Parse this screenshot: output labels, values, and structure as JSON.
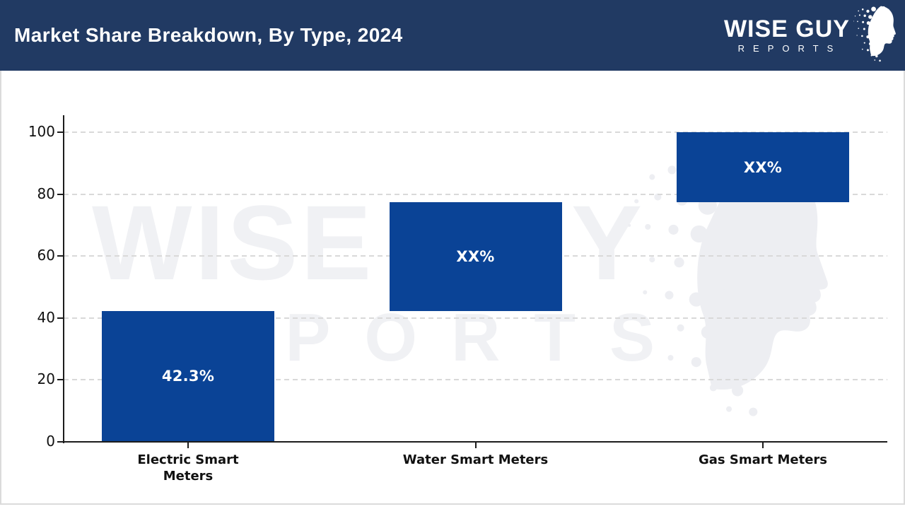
{
  "header": {
    "title": "Market Share Breakdown, By Type, 2024",
    "bg_color": "#213A63",
    "logo": {
      "wordmark": "WISE GUY",
      "subtitle": "REPORTS"
    }
  },
  "chart_data": {
    "type": "bar",
    "subtype": "waterfall",
    "title": "Market Share Breakdown, By Type, 2024",
    "categories": [
      "Electric Smart Meters",
      "Water Smart Meters",
      "Gas Smart Meters"
    ],
    "categories_display": [
      [
        "Electric Smart",
        "Meters"
      ],
      [
        "Water Smart Meters"
      ],
      [
        "Gas Smart Meters"
      ]
    ],
    "segments": [
      {
        "category": "Electric Smart Meters",
        "start": 0,
        "end": 42.3,
        "label": "42.3%"
      },
      {
        "category": "Water Smart Meters",
        "start": 42.3,
        "end": 77.3,
        "label": "XX%"
      },
      {
        "category": "Gas Smart Meters",
        "start": 77.3,
        "end": 100,
        "label": "XX%"
      }
    ],
    "xlabel": "",
    "ylabel": "",
    "ylim": [
      0,
      100
    ],
    "yticks": [
      0,
      20,
      40,
      60,
      80,
      100
    ],
    "grid": "horizontal-dashed",
    "legend": "none",
    "bar_color": "#0A4396",
    "bar_label_color": "#FFFFFF",
    "axis_color": "#1C1C1C",
    "gridline_color": "#D9D9D9"
  }
}
